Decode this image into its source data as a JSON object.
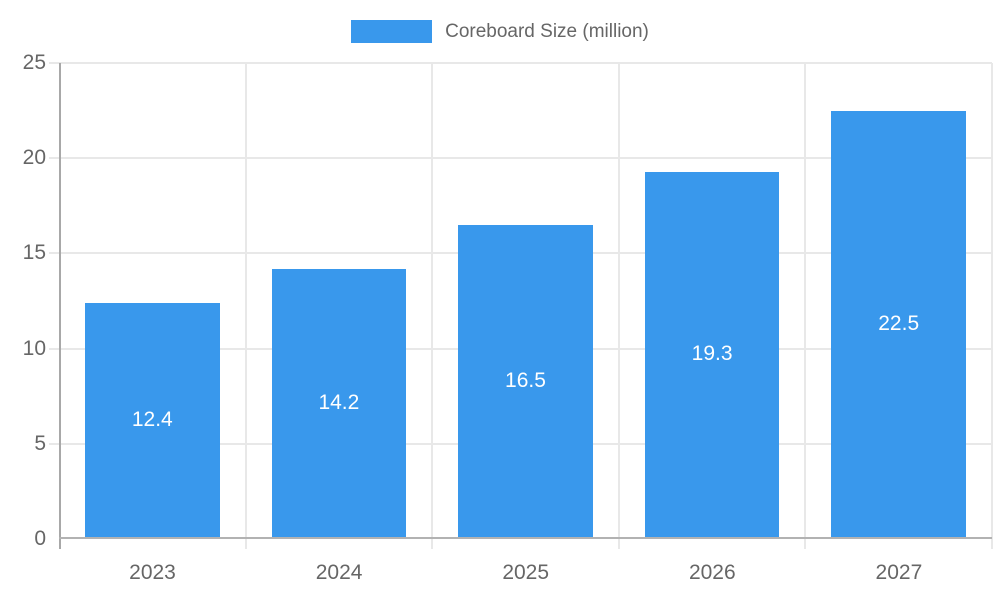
{
  "legend": {
    "label": "Coreboard Size (million)"
  },
  "colors": {
    "bar": "#3998ec",
    "grid": "#e8e8e8",
    "axis_x": "#b2b2b2",
    "axis_y": "#a8a8a8",
    "tick_text": "#666666",
    "value_text": "#ffffff",
    "background": "#ffffff"
  },
  "chart_data": {
    "type": "bar",
    "title": "",
    "xlabel": "",
    "ylabel": "",
    "categories": [
      "2023",
      "2024",
      "2025",
      "2026",
      "2027"
    ],
    "series": [
      {
        "name": "Coreboard Size (million)",
        "values": [
          12.4,
          14.2,
          16.5,
          19.3,
          22.5
        ],
        "value_labels": [
          "12.4",
          "14.2",
          "16.5",
          "19.3",
          "22.5"
        ],
        "color": "#3998ec"
      }
    ],
    "ylim": [
      0,
      25
    ],
    "yticks": [
      0,
      5,
      10,
      15,
      20,
      25
    ],
    "ytick_labels": [
      "0",
      "5",
      "10",
      "15",
      "20",
      "25"
    ],
    "grid": true,
    "legend_position": "top-center",
    "value_label_position": "centered-inside-bar"
  }
}
